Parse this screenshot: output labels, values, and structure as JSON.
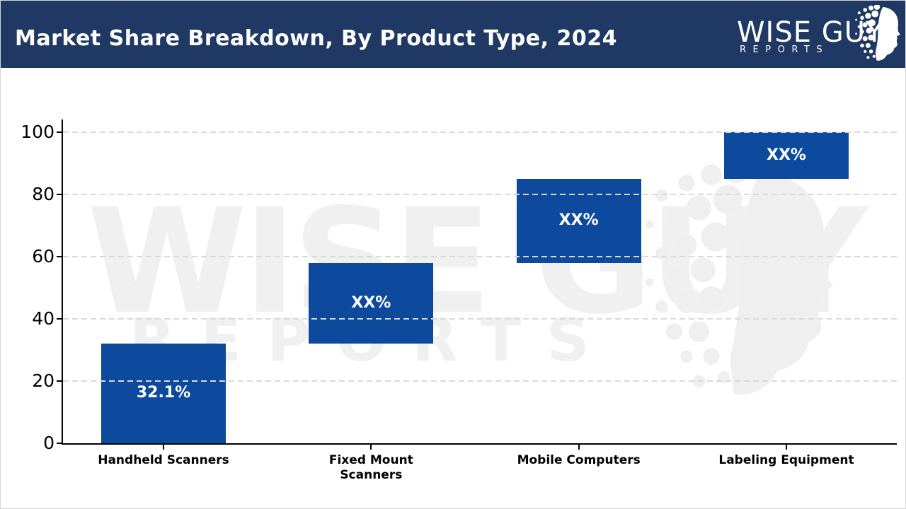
{
  "header": {
    "title": "Market Share Breakdown, By Product Type, 2024",
    "logo": {
      "line1": "WISE GUY",
      "line2": "REPORTS"
    }
  },
  "watermark": {
    "line1": "WISE GUY",
    "line2": "REPORTS"
  },
  "chart_data": {
    "type": "bar",
    "subtype": "waterfall",
    "title": "Market Share Breakdown, By Product Type, 2024",
    "categories": [
      "Handheld Scanners",
      "Fixed Mount\nScanners",
      "Mobile Computers",
      "Labeling Equipment"
    ],
    "series": [
      {
        "name": "Market share (%)",
        "segments": [
          {
            "category": "Handheld Scanners",
            "start": 0,
            "end": 32.1,
            "label": "32.1%"
          },
          {
            "category": "Fixed Mount Scanners",
            "start": 32.1,
            "end": 58,
            "label": "XX%"
          },
          {
            "category": "Mobile Computers",
            "start": 58,
            "end": 85,
            "label": "XX%"
          },
          {
            "category": "Labeling Equipment",
            "start": 85,
            "end": 100,
            "label": "XX%"
          }
        ]
      }
    ],
    "xlabel": "",
    "ylabel": "",
    "yticks": [
      0,
      20,
      40,
      60,
      80,
      100
    ],
    "ylim": [
      0,
      104
    ],
    "grid": "horizontal dashed, drawn above bars",
    "legend": "none",
    "bar_color": "#0d4a9e",
    "bar_label_color": "#ffffff"
  },
  "colors": {
    "header_bg": "#1f3864",
    "bar": "#0d4a9e",
    "watermark": "#f0f0f1",
    "grid": "#d9d9d9",
    "axis": "#000000",
    "frame_border": "#d5d5d5"
  }
}
